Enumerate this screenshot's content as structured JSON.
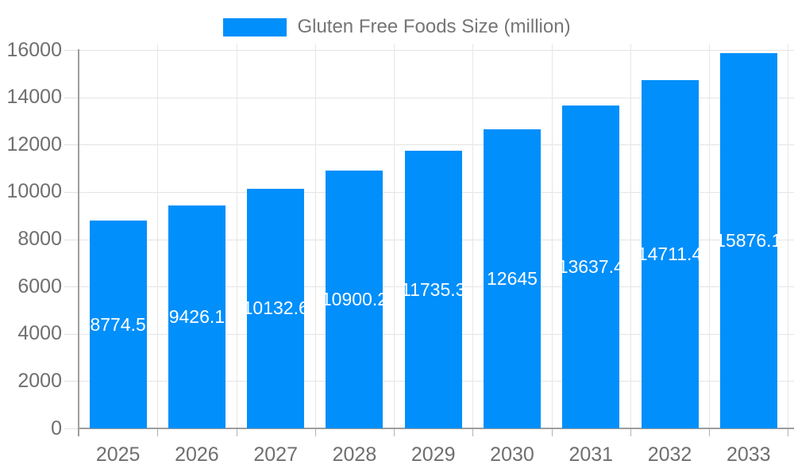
{
  "legend": {
    "label": "Gluten Free Foods Size (million)",
    "swatch_color": "#008FFB"
  },
  "chart_data": {
    "type": "bar",
    "title": "Gluten Free Foods Size (million)",
    "categories": [
      "2025",
      "2026",
      "2027",
      "2028",
      "2029",
      "2030",
      "2031",
      "2032",
      "2033"
    ],
    "series": [
      {
        "name": "Gluten Free Foods Size (million)",
        "values": [
          8774.5,
          9426.1,
          10132.6,
          10900.2,
          11735.3,
          12645,
          13637.4,
          14711.4,
          15876.1
        ],
        "data_labels": [
          "8774.5",
          "9426.1",
          "10132.6",
          "10900.2",
          "11735.3",
          "12645",
          "13637.4",
          "14711.4",
          "15876.1"
        ],
        "color": "#008FFB"
      }
    ],
    "xlabel": "",
    "ylabel": "",
    "ylim": [
      0,
      16000
    ],
    "yticks": [
      0,
      2000,
      4000,
      6000,
      8000,
      10000,
      12000,
      14000,
      16000
    ],
    "ytick_labels": [
      "0",
      "2000",
      "4000",
      "6000",
      "8000",
      "10000",
      "12000",
      "14000",
      "16000"
    ],
    "grid": true,
    "legend_position": "top",
    "data_label_color": "#ffffff",
    "axis_text_color": "#6f6f6f"
  }
}
